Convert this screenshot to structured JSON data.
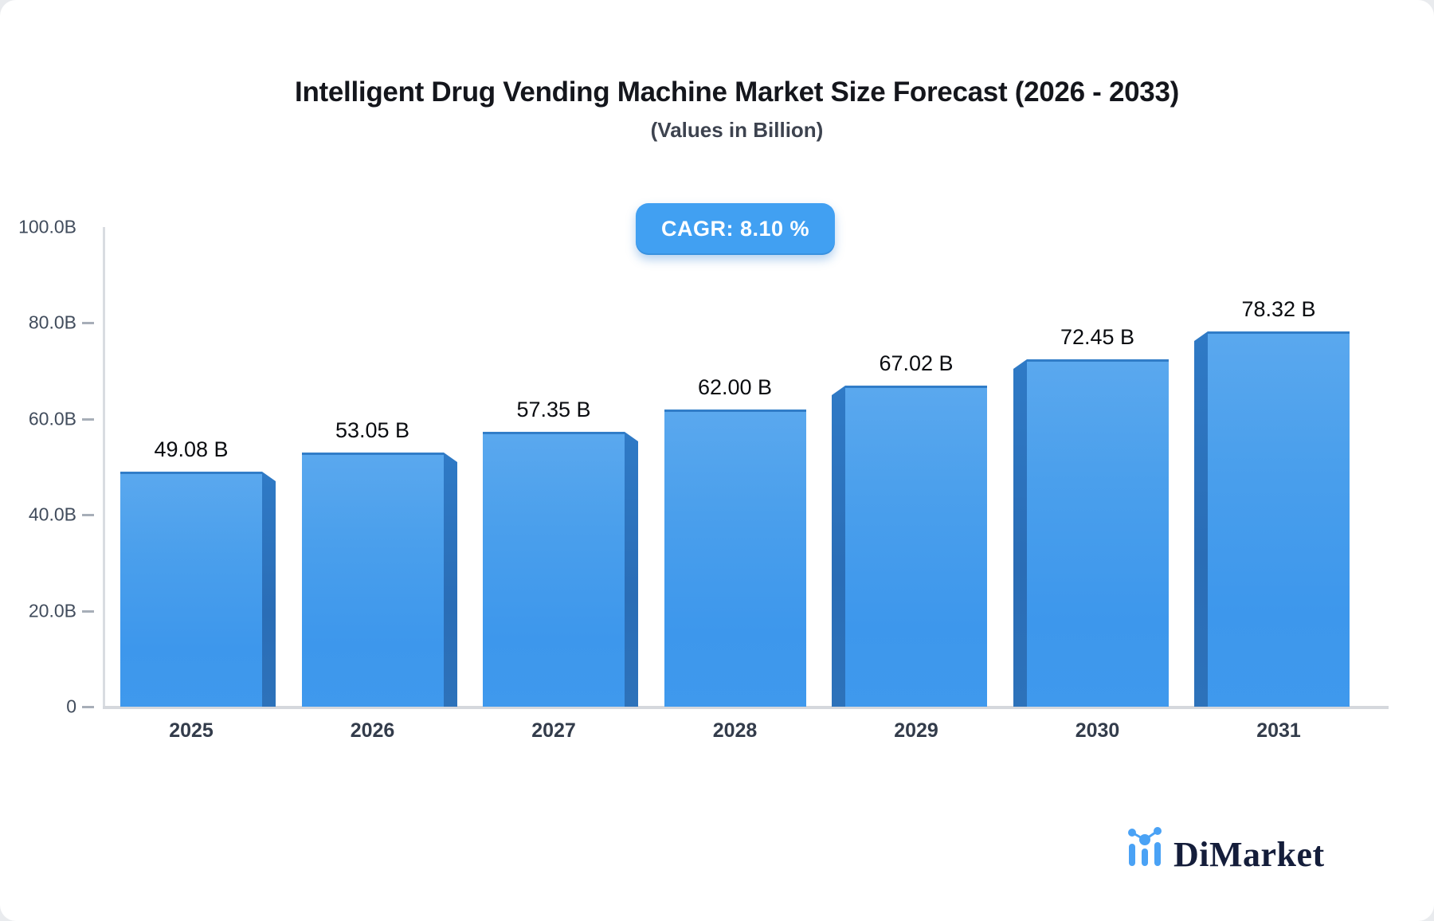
{
  "title": "Intelligent Drug Vending Machine Market Size Forecast (2026 - 2033)",
  "subtitle": "(Values in Billion)",
  "badge": {
    "label": "CAGR: 8.10 %"
  },
  "logo": {
    "text": "DiMarket",
    "icon": "mini-bar-chart-logo-icon",
    "icon_color": "#4aa2f5",
    "text_color": "#141d3a"
  },
  "colors": {
    "bar_face": "#459deb",
    "bar_side": "#2c72b9",
    "badge_bg": "#41a0f2",
    "axis_line": "#d9dce1",
    "baseline": "#d5d8dd"
  },
  "chart_data": {
    "type": "bar",
    "title": "Intelligent Drug Vending Machine Market Size Forecast (2026 - 2033)",
    "subtitle": "(Values in Billion)",
    "categories": [
      "2025",
      "2026",
      "2027",
      "2028",
      "2029",
      "2030",
      "2031"
    ],
    "values": [
      49.08,
      53.05,
      57.35,
      62.0,
      67.02,
      72.45,
      78.32
    ],
    "value_suffix": " B",
    "xlabel": "",
    "ylabel": "",
    "ylim": [
      0,
      100
    ],
    "grid": false,
    "legend": false,
    "y_ticks": [
      {
        "value": 0,
        "label": "0",
        "dash": true
      },
      {
        "value": 20,
        "label": "20.0B",
        "dash": true
      },
      {
        "value": 40,
        "label": "40.0B",
        "dash": true
      },
      {
        "value": 60,
        "label": "60.0B",
        "dash": true
      },
      {
        "value": 80,
        "label": "80.0B",
        "dash": true
      },
      {
        "value": 100,
        "label": "100.0B",
        "dash": false
      }
    ],
    "annotation": "CAGR: 8.10 %"
  }
}
